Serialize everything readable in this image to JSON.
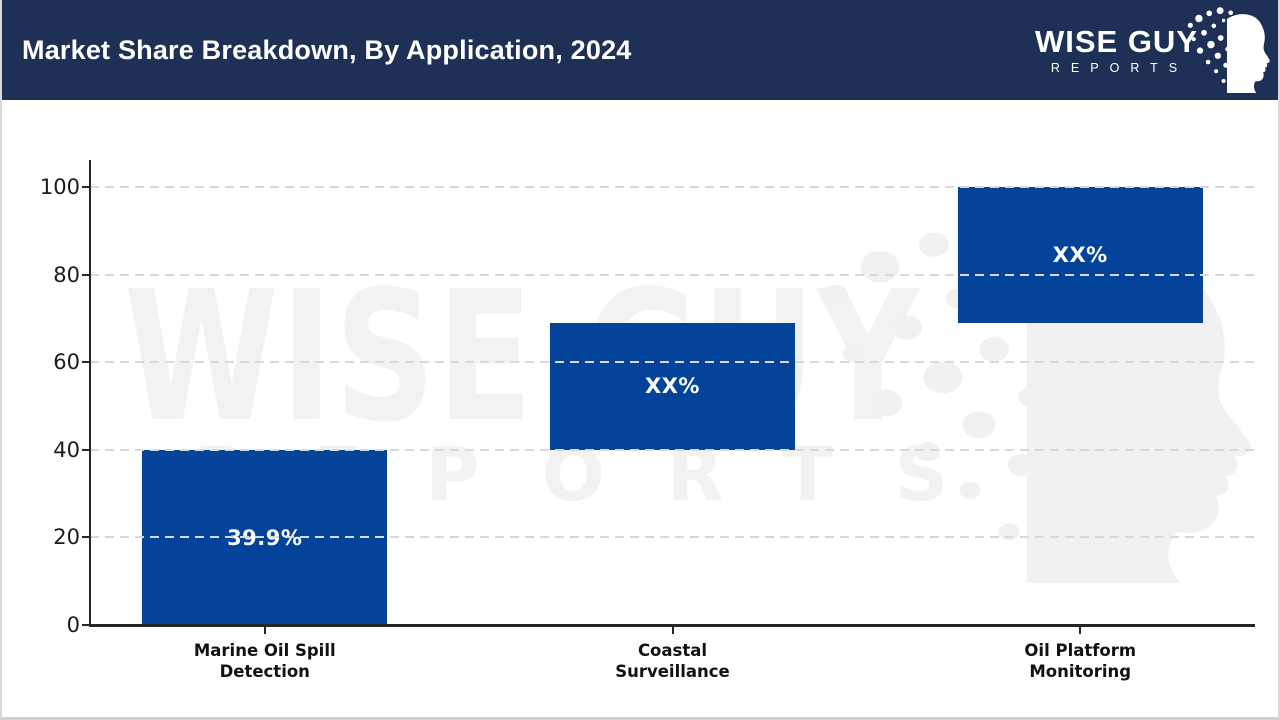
{
  "header": {
    "title": "Market Share Breakdown, By Application, 2024",
    "logo_line1": "WISE GUY",
    "logo_line2": "REPORTS"
  },
  "watermark": {
    "line1": "WISE GUY",
    "line2": "REPORTS"
  },
  "colors": {
    "header_bg": "#1e3056",
    "bar": "#04439a",
    "grid": "#d9d9d9",
    "axis": "#262626",
    "watermark": "#f2f2f2"
  },
  "chart_data": {
    "type": "bar",
    "subtype": "floating-waterfall",
    "title": "Market Share Breakdown, By Application, 2024",
    "categories": [
      "Marine Oil Spill Detection",
      "Coastal Surveillance",
      "Oil Platform Monitoring"
    ],
    "bars": [
      {
        "label_lines": [
          "Marine Oil Spill",
          "Detection"
        ],
        "base": 0,
        "top": 39.9,
        "value_label": "39.9%"
      },
      {
        "label_lines": [
          "Coastal",
          "Surveillance"
        ],
        "base": 39.9,
        "top": 69.0,
        "value_label": "XX%"
      },
      {
        "label_lines": [
          "Oil Platform",
          "Monitoring"
        ],
        "base": 69.0,
        "top": 100,
        "value_label": "XX%"
      }
    ],
    "xlabel": "",
    "ylabel": "",
    "ylim": [
      0,
      100
    ],
    "yticks": [
      0,
      20,
      40,
      60,
      80,
      100
    ],
    "grid": "horizontal-dashed",
    "legend": "none"
  }
}
